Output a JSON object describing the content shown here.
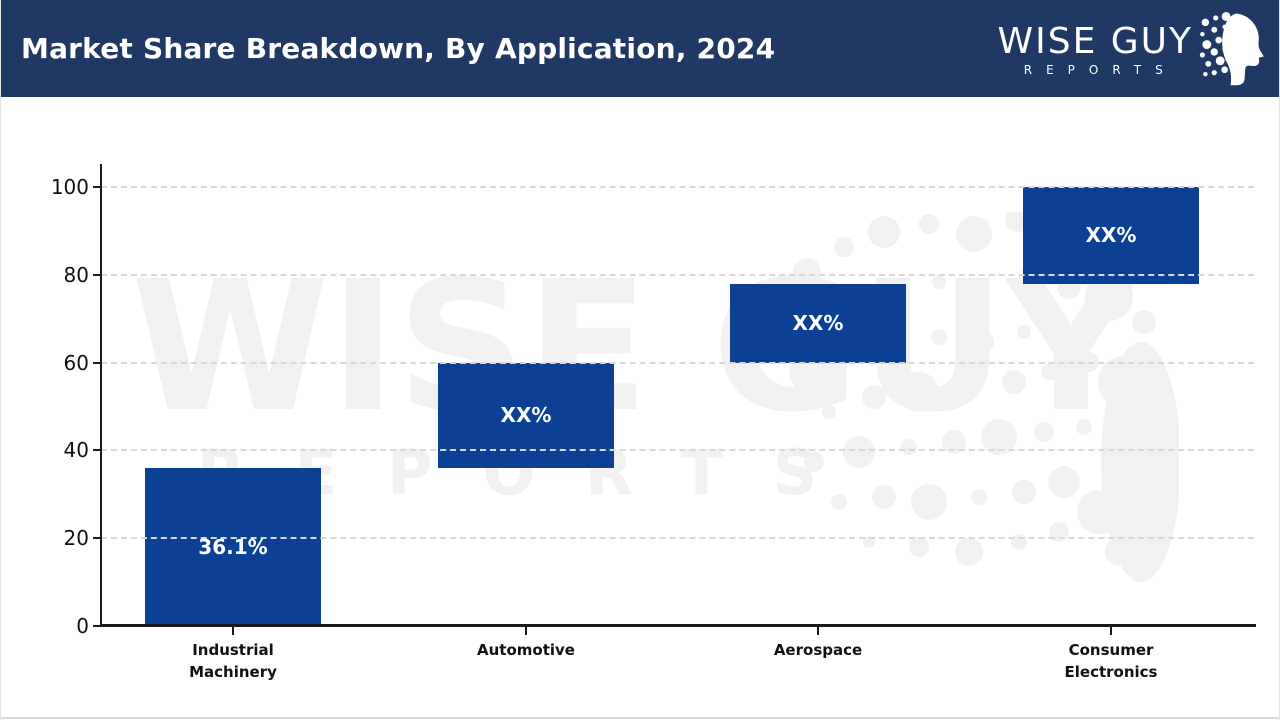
{
  "header": {
    "title": "Market Share Breakdown, By Application, 2024",
    "bg_color": "#1f3864",
    "logo": {
      "wordmark": "WISE GUY",
      "subtext": "REPORTS"
    }
  },
  "watermark": {
    "wordmark": "WISE GUY",
    "subtext": "REPORTS"
  },
  "chart_data": {
    "type": "bar",
    "subtype": "waterfall",
    "title": "Market Share Breakdown, By Application, 2024",
    "categories": [
      "Industrial Machinery",
      "Automotive",
      "Aerospace",
      "Consumer Electronics"
    ],
    "categories_wrapped": [
      "Industrial\nMachinery",
      "Automotive",
      "Aerospace",
      "Consumer\nElectronics"
    ],
    "segments": [
      {
        "category": "Industrial Machinery",
        "start": 0,
        "end": 36.1,
        "label": "36.1%"
      },
      {
        "category": "Automotive",
        "start": 36.1,
        "end": 60,
        "label": "XX%"
      },
      {
        "category": "Aerospace",
        "start": 60,
        "end": 78,
        "label": "XX%"
      },
      {
        "category": "Consumer Electronics",
        "start": 78,
        "end": 100,
        "label": "XX%"
      }
    ],
    "y_ticks": [
      0,
      20,
      40,
      60,
      80,
      100
    ],
    "ylim": [
      0,
      105
    ],
    "grid": {
      "axis": "y",
      "style": "dashed",
      "color": "#d8d8d8",
      "above_bars": true
    },
    "legend": "none",
    "bar_color": "#0c4094",
    "bar_label_color": "#ffffff",
    "axis_color": "#1a1a1a",
    "tick_label_color": "#111111",
    "xlabel": "",
    "ylabel": ""
  }
}
